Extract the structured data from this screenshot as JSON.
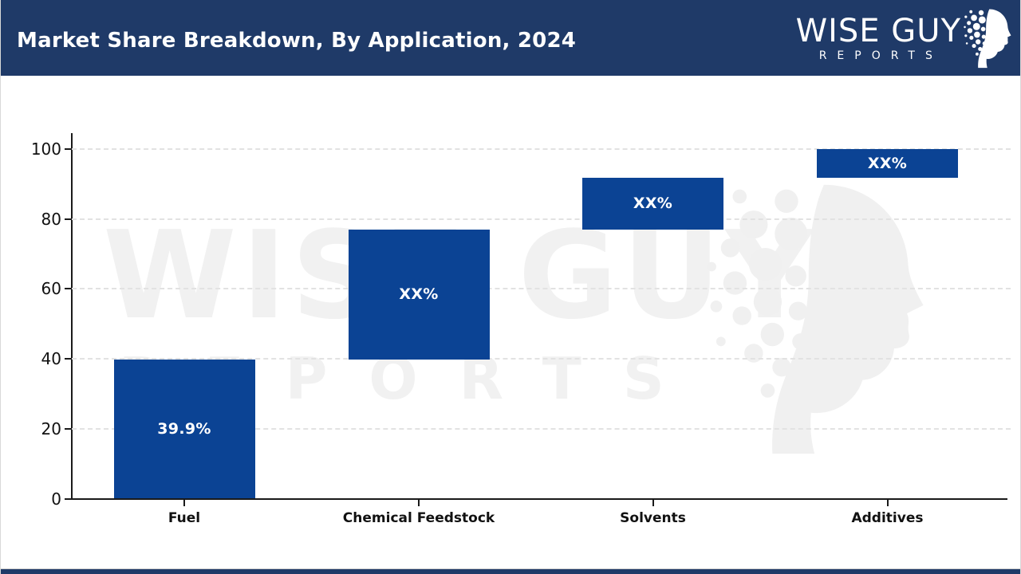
{
  "header": {
    "title": "Market Share Breakdown, By Application, 2024",
    "bg_color": "#1f3a68",
    "logo": {
      "wordmark": "WISE GUY",
      "subtext": "REPORTS"
    }
  },
  "watermark": {
    "line1": "WISE GUY",
    "line2": "REPORTS"
  },
  "chart_data": {
    "type": "bar",
    "variant": "waterfall",
    "title": "Market Share Breakdown, By Application, 2024",
    "categories": [
      "Fuel",
      "Chemical Feedstock",
      "Solvents",
      "Additives"
    ],
    "segments": [
      {
        "category": "Fuel",
        "start": 0,
        "end": 39.9,
        "value": 39.9,
        "label": "39.9%"
      },
      {
        "category": "Chemical Feedstock",
        "start": 39.9,
        "end": 76.9,
        "value": 37.0,
        "label": "XX%"
      },
      {
        "category": "Solvents",
        "start": 76.9,
        "end": 91.9,
        "value": 15.0,
        "label": "XX%"
      },
      {
        "category": "Additives",
        "start": 91.9,
        "end": 100,
        "value": 8.1,
        "label": "XX%"
      }
    ],
    "ylim": [
      0,
      100
    ],
    "yticks": [
      0,
      20,
      40,
      60,
      80,
      100
    ],
    "xlabel": "",
    "ylabel": "",
    "grid": "horizontal-dashed",
    "legend": "none",
    "bar_color": "#0b4394",
    "bar_label_color": "#ffffff",
    "axis_color": "#1a1a1a"
  }
}
